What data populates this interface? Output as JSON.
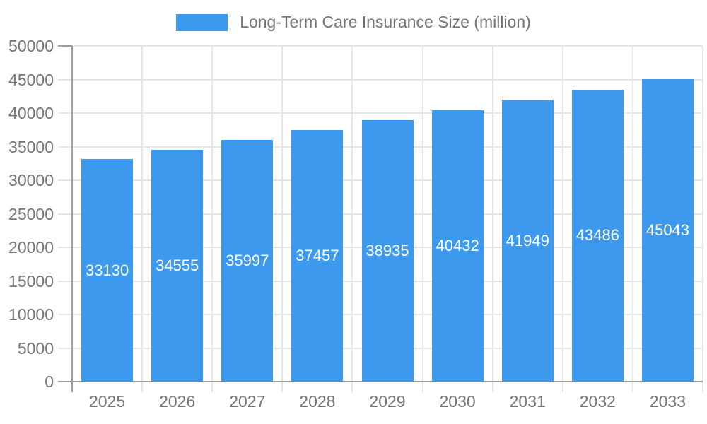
{
  "chart_data": {
    "type": "bar",
    "title": "",
    "legend": "Long-Term Care Insurance Size (million)",
    "legend_position": "top",
    "categories": [
      "2025",
      "2026",
      "2027",
      "2028",
      "2029",
      "2030",
      "2031",
      "2032",
      "2033"
    ],
    "values": [
      33130,
      34555,
      35997,
      37457,
      38935,
      40432,
      41949,
      43486,
      45043
    ],
    "xlabel": "",
    "ylabel": "",
    "ylim": [
      0,
      50000
    ],
    "yticks": [
      0,
      5000,
      10000,
      15000,
      20000,
      25000,
      30000,
      35000,
      40000,
      45000,
      50000
    ],
    "grid": true,
    "bar_value_labels_shown": true
  },
  "colors": {
    "bar": "#3C99ED",
    "axis_line": "#9E9E9E",
    "grid_line": "#E6E6E6",
    "axis_text": "#757575",
    "bar_label_text": "#FFFFFF",
    "background": "#FFFFFF"
  }
}
